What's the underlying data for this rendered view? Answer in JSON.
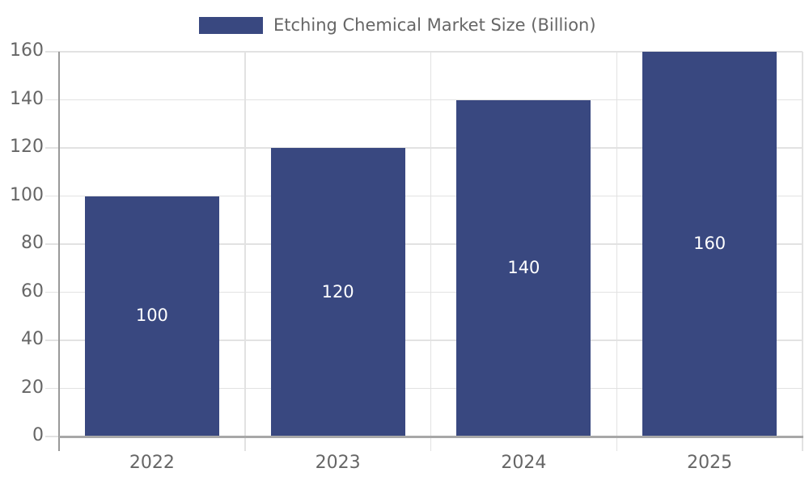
{
  "chart_data": {
    "type": "bar",
    "title": "Etching Chemical Market Size (Billion)",
    "categories": [
      "2022",
      "2023",
      "2024",
      "2025"
    ],
    "values": [
      100,
      120,
      140,
      160
    ],
    "bar_value_labels": [
      "100",
      "120",
      "140",
      "160"
    ],
    "xlabel": "",
    "ylabel": "",
    "ylim": [
      0,
      160
    ],
    "yticks": [
      0,
      20,
      40,
      60,
      80,
      100,
      120,
      140,
      160
    ],
    "ytick_labels": [
      "0",
      "20",
      "40",
      "60",
      "80",
      "100",
      "120",
      "140",
      "160"
    ],
    "grid": true,
    "legend_position": "top-center",
    "legend_entries": [
      "Etching Chemical Market Size (Billion)"
    ]
  },
  "colors": {
    "bar": "#394880",
    "grid": "#e2e2e2",
    "axis_line": "#a8a8a8",
    "spine": "#999999",
    "tick_label": "#666666",
    "legend_text": "#666666",
    "value_label": "#ffffff",
    "background": "#ffffff"
  }
}
